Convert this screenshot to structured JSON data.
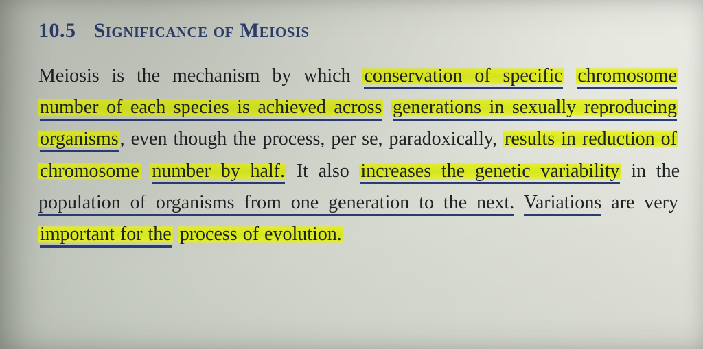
{
  "heading": {
    "number": "10.5",
    "title": "Significance of Meiosis",
    "color": "#2b3f6b",
    "fontsize_pt": 22
  },
  "body": {
    "fontsize_pt": 21,
    "line_height": 1.65,
    "text_color": "#1f2327",
    "underline_color": "#2c3f78",
    "highlight_color": "#e0ee24",
    "background_gradient": [
      "#b8bdb5",
      "#e9ebe4"
    ],
    "segments": [
      {
        "text": "Meiosis is the mechanism by which ",
        "highlight": false,
        "underline": false
      },
      {
        "text": "conservation of specific",
        "highlight": true,
        "underline": true
      },
      {
        "text": " ",
        "highlight": false,
        "underline": false
      },
      {
        "text": "chromosome number of each species is achieved across",
        "highlight": true,
        "underline": true
      },
      {
        "text": " ",
        "highlight": false,
        "underline": false
      },
      {
        "text": "generations in sexually reproducing organisms",
        "highlight": true,
        "underline": true
      },
      {
        "text": ", even though the process, per se, paradoxically, ",
        "highlight": false,
        "underline": false
      },
      {
        "text": "results in reduction of chromosome",
        "highlight": true,
        "underline": false
      },
      {
        "text": " ",
        "highlight": false,
        "underline": false
      },
      {
        "text": "number by half.",
        "highlight": true,
        "underline": true
      },
      {
        "text": " It also ",
        "highlight": false,
        "underline": false
      },
      {
        "text": "increases the genetic variability",
        "highlight": true,
        "underline": true
      },
      {
        "text": " in the ",
        "highlight": false,
        "underline": false
      },
      {
        "text": "population of organisms from one generation to the next.",
        "highlight": false,
        "underline": true
      },
      {
        "text": " ",
        "highlight": false,
        "underline": false
      },
      {
        "text": "Variations",
        "highlight": false,
        "underline": true
      },
      {
        "text": " are very ",
        "highlight": false,
        "underline": false
      },
      {
        "text": "important for the",
        "highlight": true,
        "underline": true
      },
      {
        "text": " ",
        "highlight": false,
        "underline": false
      },
      {
        "text": "process of evolution.",
        "highlight": true,
        "underline": false
      }
    ]
  }
}
